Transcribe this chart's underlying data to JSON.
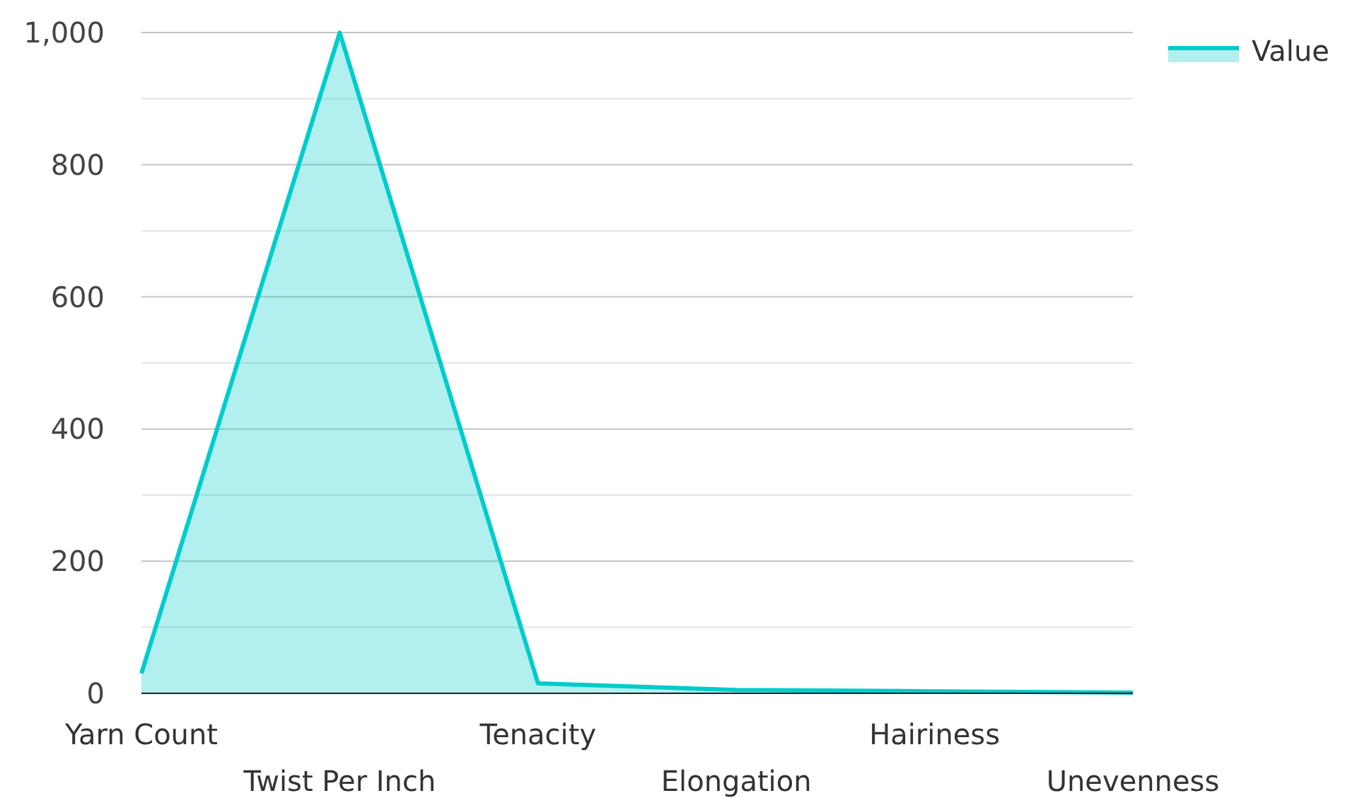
{
  "chart_data": {
    "type": "area",
    "categories": [
      "Yarn Count",
      "Twist Per Inch",
      "Tenacity",
      "Elongation",
      "Hairiness",
      "Unevenness"
    ],
    "series": [
      {
        "name": "Value",
        "color": "#00cccc",
        "values": [
          30,
          1000,
          15,
          5,
          3,
          1
        ]
      }
    ],
    "ylim": [
      0,
      1000
    ],
    "yticks": [
      0,
      {
        "value": 100,
        "label": null
      },
      200,
      {
        "value": 300,
        "label": null
      },
      400,
      {
        "value": 500,
        "label": null
      },
      600,
      {
        "value": 700,
        "label": null
      },
      800,
      {
        "value": 900,
        "label": null
      },
      {
        "value": 1000,
        "label": "1,000"
      }
    ],
    "grid": "y",
    "legend": "top right"
  }
}
